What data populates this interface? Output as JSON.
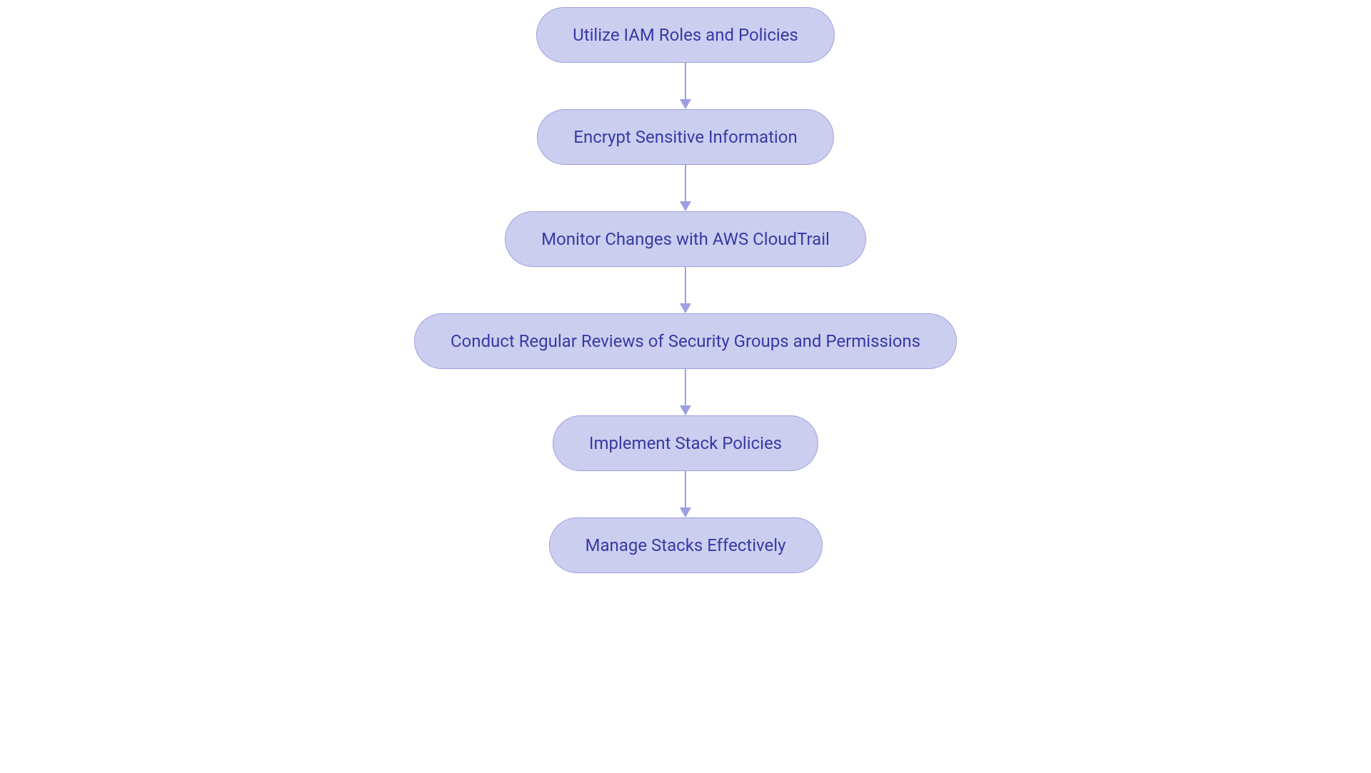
{
  "flowchart": {
    "type": "flowchart",
    "direction": "vertical",
    "background_color": "#ffffff",
    "node_fill": "#ccceef",
    "node_border": "#9c9fe0",
    "node_border_width": 1,
    "text_color": "#3739a6",
    "font_size": 24,
    "arrow_color": "#9c9fe0",
    "arrow_width": 2.5,
    "arrow_gap": 66,
    "node_vgap": 144,
    "nodes": [
      {
        "id": "n1",
        "label": "Utilize IAM Roles and Policies"
      },
      {
        "id": "n2",
        "label": "Encrypt Sensitive Information"
      },
      {
        "id": "n3",
        "label": "Monitor Changes with AWS CloudTrail"
      },
      {
        "id": "n4",
        "label": "Conduct Regular Reviews of Security Groups and Permissions"
      },
      {
        "id": "n5",
        "label": "Implement Stack Policies"
      },
      {
        "id": "n6",
        "label": "Manage Stacks Effectively"
      }
    ],
    "edges": [
      {
        "from": "n1",
        "to": "n2"
      },
      {
        "from": "n2",
        "to": "n3"
      },
      {
        "from": "n3",
        "to": "n4"
      },
      {
        "from": "n4",
        "to": "n5"
      },
      {
        "from": "n5",
        "to": "n6"
      }
    ]
  }
}
